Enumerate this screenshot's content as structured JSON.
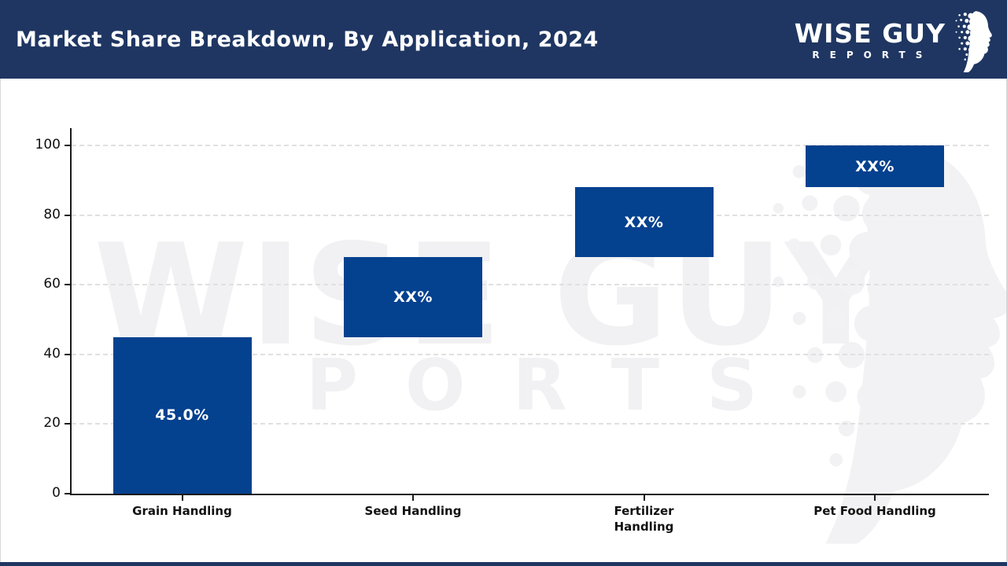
{
  "header": {
    "title": "Market Share Breakdown, By Application, 2024",
    "logo": {
      "line1": "WISE GUY",
      "line2": "REPORTS"
    }
  },
  "watermark": {
    "big_text": "WISE GUY",
    "ports_text": "PORTS"
  },
  "colors": {
    "header_bg": "#1f3662",
    "bar_fill": "#04418f",
    "grid": "#e0e0e0",
    "axis": "#1a1a1a",
    "watermark": "#f1f1f3"
  },
  "chart_data": {
    "type": "bar",
    "subtype": "floating-waterfall",
    "title": "Market Share Breakdown, By Application, 2024",
    "categories": [
      "Grain Handling",
      "Seed Handling",
      "Fertilizer Handling",
      "Pet Food Handling"
    ],
    "tick_labels": [
      "Grain Handling",
      "Seed Handling",
      "Fertilizer\nHandling",
      "Pet Food Handling"
    ],
    "segments": [
      {
        "category": "Grain Handling",
        "start": 0,
        "end": 45,
        "label": "45.0%"
      },
      {
        "category": "Seed Handling",
        "start": 45,
        "end": 68,
        "label": "XX%"
      },
      {
        "category": "Fertilizer Handling",
        "start": 68,
        "end": 88,
        "label": "XX%"
      },
      {
        "category": "Pet Food Handling",
        "start": 88,
        "end": 100,
        "label": "XX%"
      }
    ],
    "ylim": [
      0,
      100
    ],
    "yticks": [
      0,
      20,
      40,
      60,
      80,
      100
    ],
    "grid": "horizontal-dashed",
    "legend": null
  }
}
